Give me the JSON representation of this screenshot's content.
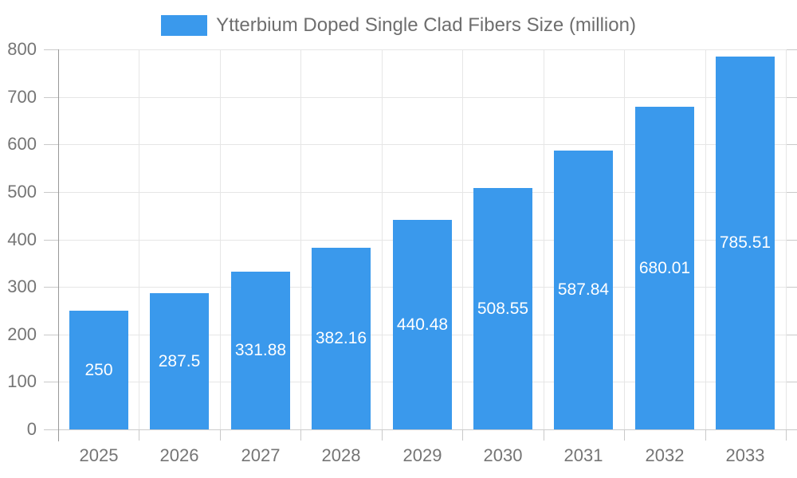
{
  "chart_data": {
    "type": "bar",
    "title": "Ytterbium Doped Single Clad Fibers Size (million)",
    "legend_position": "top",
    "categories": [
      "2025",
      "2026",
      "2027",
      "2028",
      "2029",
      "2030",
      "2031",
      "2032",
      "2033"
    ],
    "values": [
      250,
      287.5,
      331.88,
      382.16,
      440.48,
      508.55,
      587.84,
      680.01,
      785.51
    ],
    "xlabel": "",
    "ylabel": "",
    "ylim": [
      0,
      800
    ],
    "ytick_step": 100,
    "ytick_labels": [
      "0",
      "100",
      "200",
      "300",
      "400",
      "500",
      "600",
      "700",
      "800"
    ],
    "grid": "both",
    "bar_labels_inside": true,
    "colors": {
      "bar": "#3A99EC",
      "grid": "#e6e6e6",
      "y_axis_line": "#999999",
      "baseline": "#cccccc",
      "tick": "#c9c9c9",
      "axis_label": "#757575",
      "title": "#6e6e6e",
      "bar_label": "#ffffff",
      "background": "#ffffff"
    }
  }
}
